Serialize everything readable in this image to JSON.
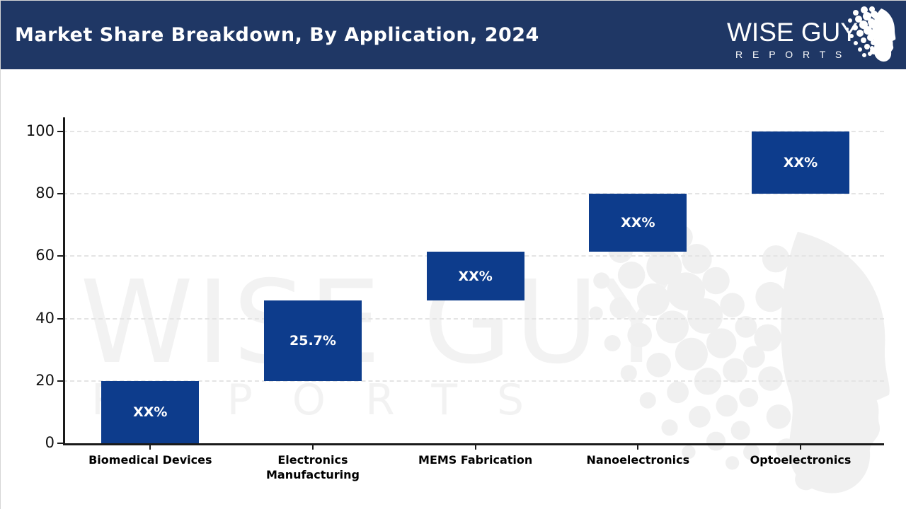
{
  "header": {
    "title": "Market Share Breakdown, By Application, 2024",
    "logo": {
      "line1": "WISE GUY",
      "line2": "R E P O R T S"
    }
  },
  "watermark": {
    "line1": "WISE GUY",
    "line2": "REPORTS"
  },
  "chart_data": {
    "type": "bar",
    "subtype": "waterfall",
    "title": "Market Share Breakdown, By Application, 2024",
    "xlabel": "",
    "ylabel": "",
    "ylim": [
      0,
      100
    ],
    "yticks": [
      0,
      20,
      40,
      60,
      80,
      100
    ],
    "grid": "horizontal-dashed",
    "legend": "none",
    "categories": [
      "Biomedical Devices",
      "Electronics Manufacturing",
      "MEMS Fabrication",
      "Nanoelectronics",
      "Optoelectronics"
    ],
    "series": [
      {
        "name": "Market Share",
        "segments": [
          {
            "category": "Biomedical Devices",
            "start": 0,
            "end": 20,
            "value_label": "XX%"
          },
          {
            "category": "Electronics Manufacturing",
            "start": 20,
            "end": 45.7,
            "value_label": "25.7%"
          },
          {
            "category": "MEMS Fabrication",
            "start": 45.7,
            "end": 61.5,
            "value_label": "XX%"
          },
          {
            "category": "Nanoelectronics",
            "start": 61.5,
            "end": 80,
            "value_label": "XX%"
          },
          {
            "category": "Optoelectronics",
            "start": 80,
            "end": 100,
            "value_label": "XX%"
          }
        ]
      }
    ]
  },
  "colors": {
    "header_bg": "#1f3765",
    "bar": "#0d3c8c",
    "bar_label": "#ffffff",
    "axis": "#1a1a1a",
    "gridline": "#e4e4e4",
    "watermark": "#f2f2f2",
    "title_text": "#ffffff"
  }
}
